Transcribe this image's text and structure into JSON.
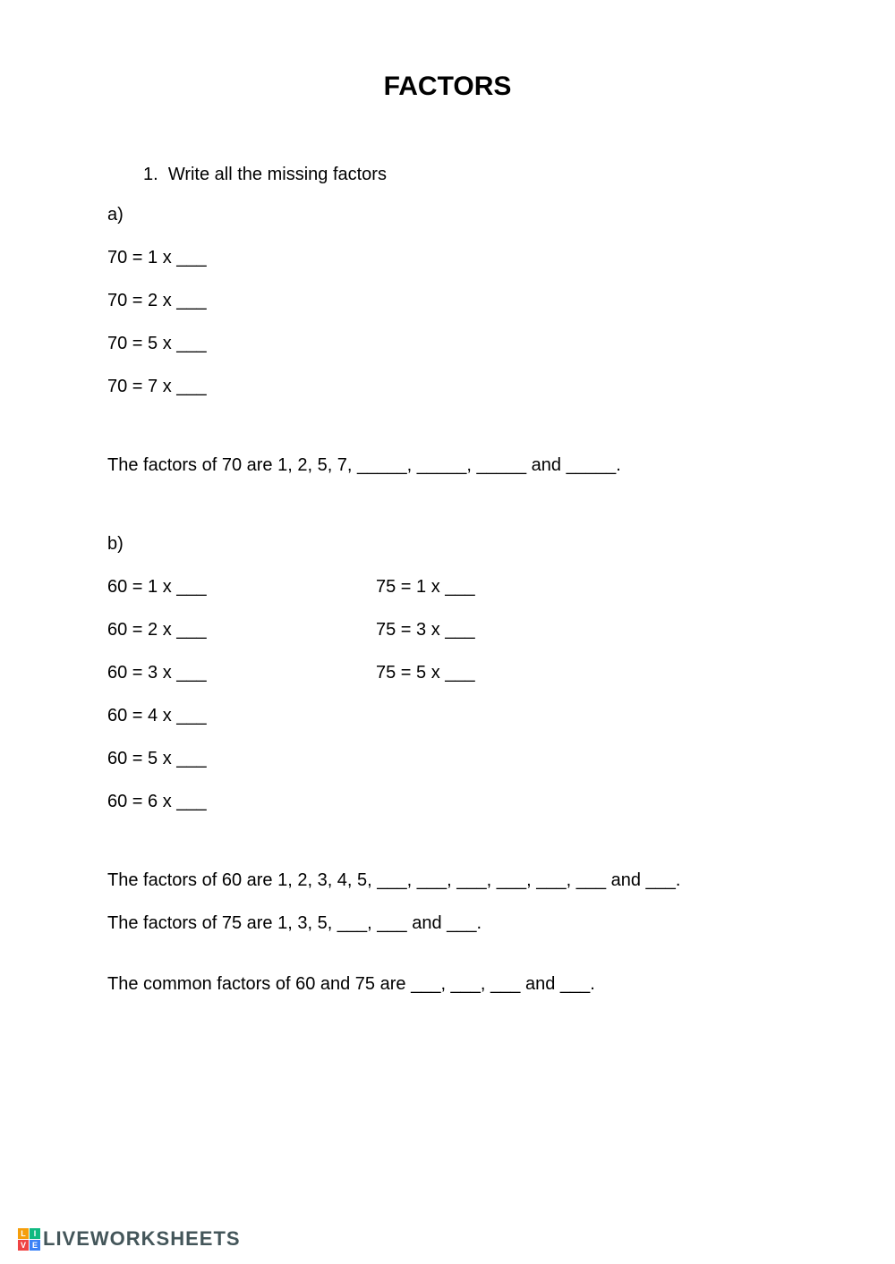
{
  "title": "FACTORS",
  "instruction": {
    "number": "1.",
    "text": "Write all the missing factors"
  },
  "section_a": {
    "label": "a)",
    "equations": [
      "70 = 1 x ___",
      "70 = 2 x ___",
      "70 = 5 x ___",
      "70 = 7 x ___"
    ],
    "summary": "The factors of 70 are 1, 2, 5, 7, _____, _____, _____ and _____."
  },
  "section_b": {
    "label": "b)",
    "left_equations": [
      "60 = 1 x ___",
      "60 = 2 x ___",
      "60 = 3 x ___",
      "60 = 4 x ___",
      "60 = 5 x ___",
      "60 = 6 x ___"
    ],
    "right_equations": [
      "75 = 1 x ___",
      "75 = 3 x ___",
      "75 = 5 x ___"
    ],
    "summary_60": "The factors of 60 are 1, 2, 3, 4, 5, ___, ___, ___, ___, ___, ___ and ___.",
    "summary_75": "The factors of 75 are 1, 3, 5, ___, ___ and ___.",
    "common_factors": "The common factors of 60 and 75 are ___, ___, ___ and ___."
  },
  "footer": {
    "brand": "LIVEWORKSHEETS",
    "tiles": [
      "L",
      "I",
      "V",
      "E"
    ]
  },
  "colors": {
    "background": "#ffffff",
    "text": "#000000",
    "brand_text": "#44565a"
  },
  "typography": {
    "title_fontsize": 30,
    "body_fontsize": 20,
    "brand_fontsize": 22,
    "font_family": "Arial"
  }
}
